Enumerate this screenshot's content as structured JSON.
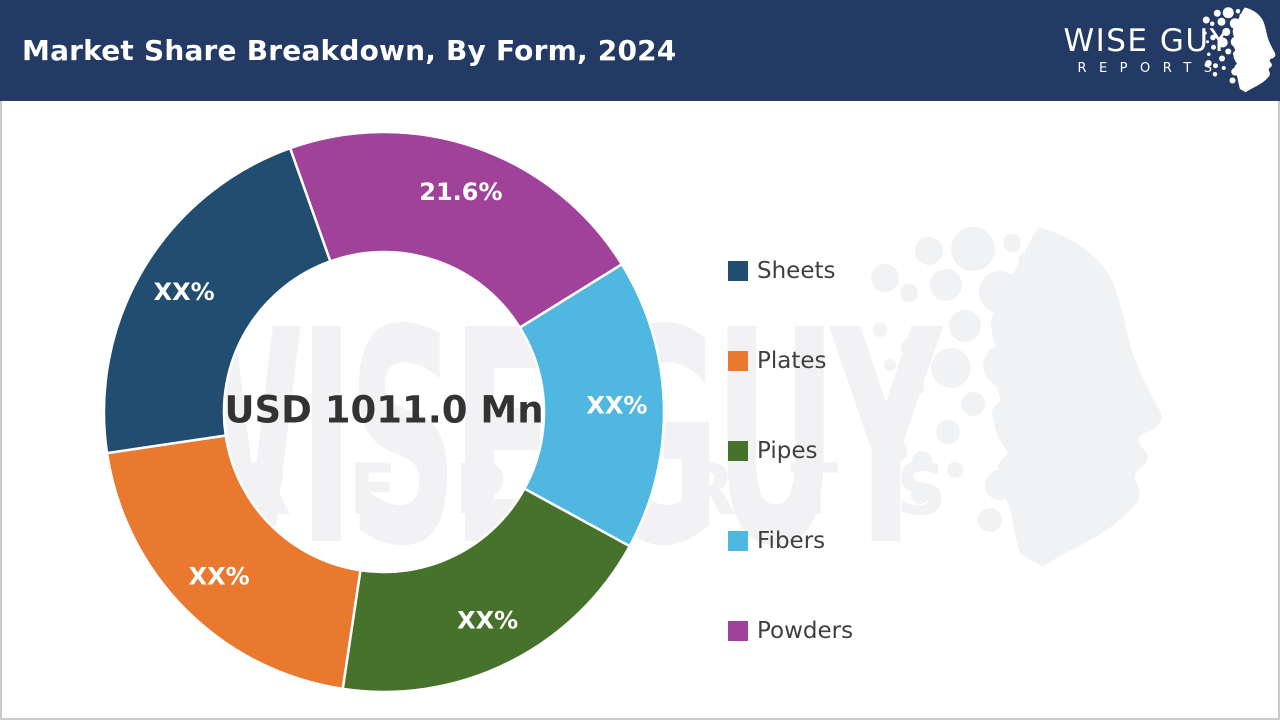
{
  "header": {
    "title": "Market Share Breakdown, By Form, 2024",
    "background_color": "#233A64",
    "logo": {
      "line1": "WISE GUY",
      "line2": "REPORTS"
    }
  },
  "watermark": {
    "line1": "WISE GUY",
    "line2": "REPORTS"
  },
  "chart_data": {
    "type": "pie",
    "variant": "donut",
    "title": "Market Share Breakdown, By Form, 2024",
    "center_label": "USD 1011.0 Mn",
    "units": "percent share",
    "legend_position": "right",
    "grid": false,
    "start_angle_deg": -19.6,
    "clockwise_order_from_top": [
      "Powders",
      "Fibers",
      "Pipes",
      "Plates",
      "Sheets"
    ],
    "series": [
      {
        "name": "Sheets",
        "value": 21.9,
        "displayed_label": "XX%",
        "color": "#214D70"
      },
      {
        "name": "Plates",
        "value": 20.3,
        "displayed_label": "XX%",
        "color": "#E8792F"
      },
      {
        "name": "Pipes",
        "value": 19.4,
        "displayed_label": "XX%",
        "color": "#46722B"
      },
      {
        "name": "Fibers",
        "value": 16.8,
        "displayed_label": "XX%",
        "color": "#50B8E0"
      },
      {
        "name": "Powders",
        "value": 21.6,
        "displayed_label": "21.6%",
        "color": "#A0419A"
      }
    ],
    "value_note": "Only the Powders slice is labeled numerically (21.6%); the other slice values are estimated from arc angles and are masked as XX% on the chart."
  }
}
